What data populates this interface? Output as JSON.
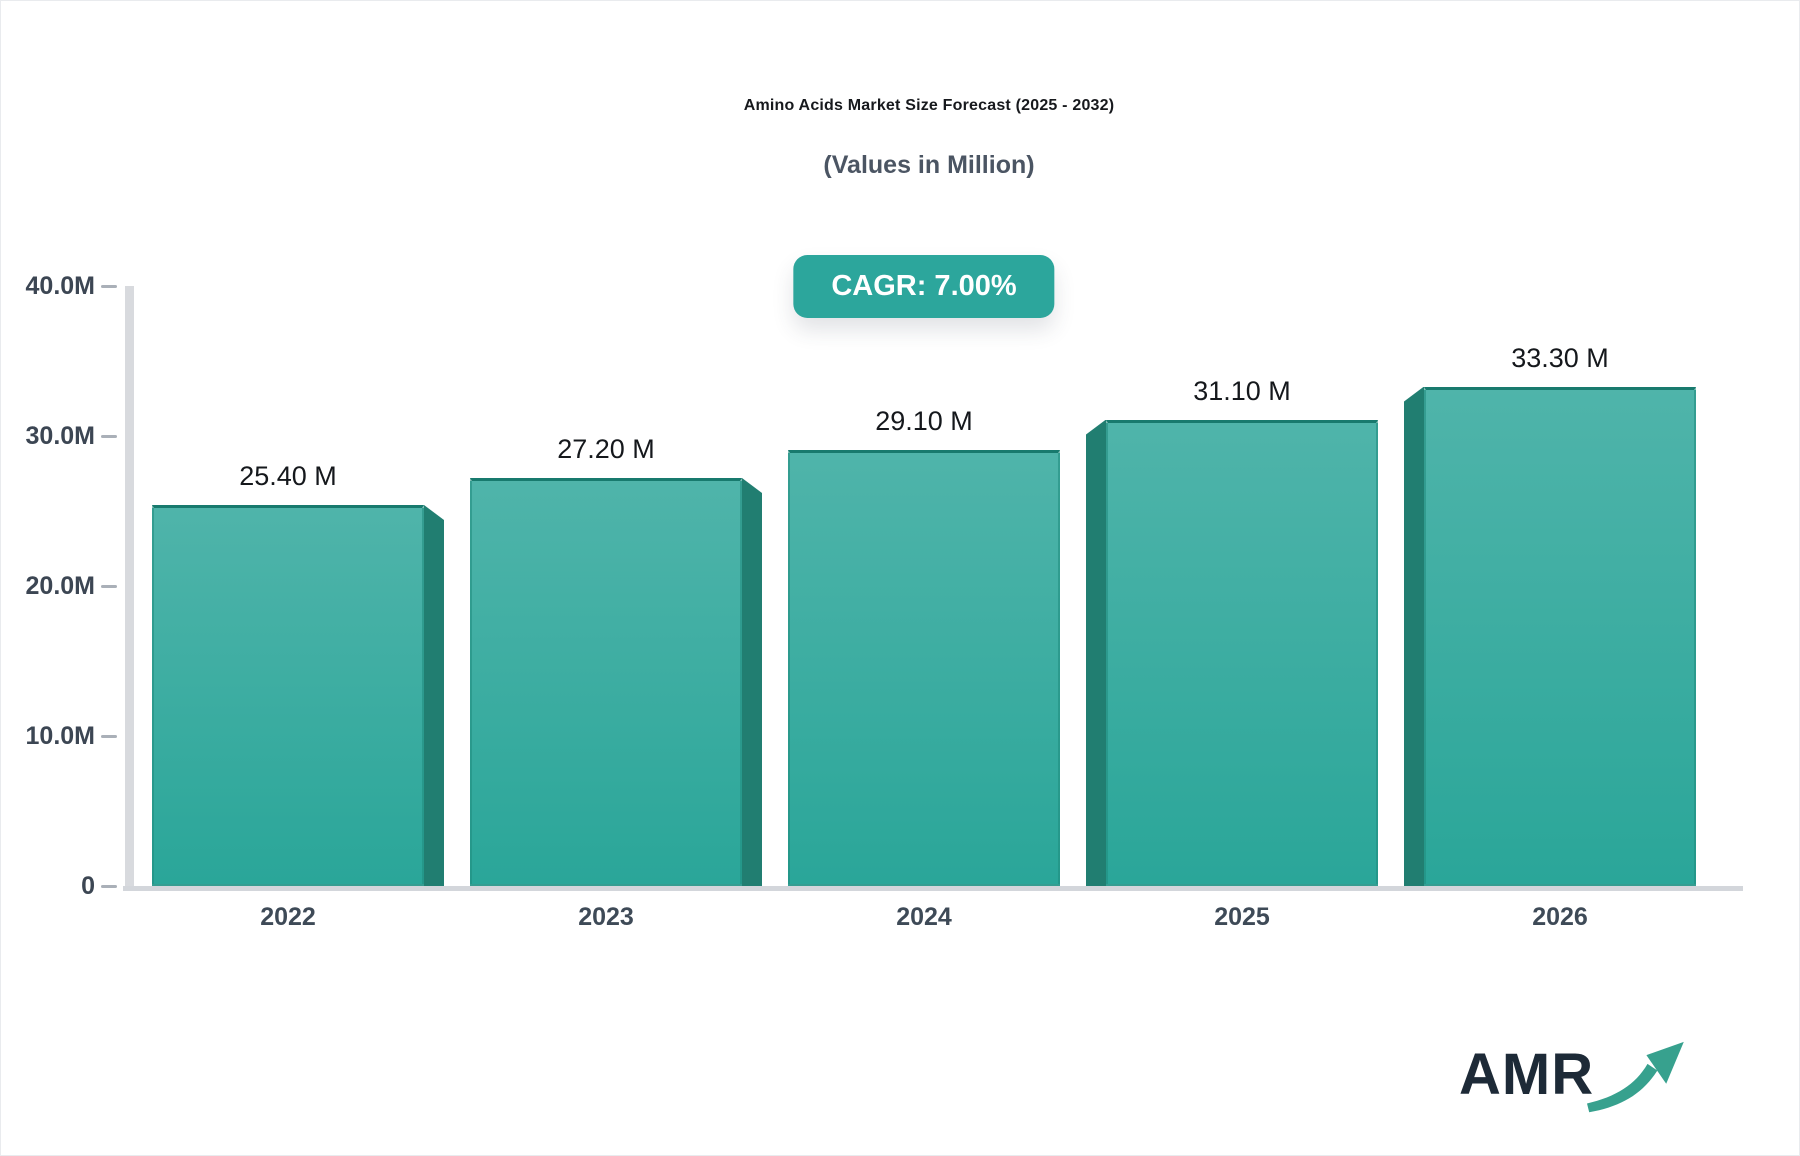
{
  "header": {
    "title": "Amino Acids Market Size Forecast (2025 - 2032)",
    "subtitle": "(Values in Million)",
    "cagr_badge": "CAGR: 7.00%"
  },
  "chart_data": {
    "type": "bar",
    "title": "Amino Acids Market Size Forecast (2025 - 2032)",
    "subtitle": "(Values in Million)",
    "categories": [
      "2022",
      "2023",
      "2024",
      "2025",
      "2026"
    ],
    "values": [
      25.4,
      27.2,
      29.1,
      31.1,
      33.3
    ],
    "value_labels": [
      "25.40 M",
      "27.20 M",
      "29.10 M",
      "31.10 M",
      "33.30 M"
    ],
    "annotation": "CAGR: 7.00%",
    "xlabel": "",
    "ylabel": "",
    "ylim": [
      0,
      40
    ],
    "ytick_values": [
      0,
      10,
      20,
      30,
      40
    ],
    "ytick_labels": [
      "0",
      "10.0M",
      "20.0M",
      "30.0M",
      "40.0M"
    ],
    "grid": false,
    "legend": "none",
    "bar_3d_sides": [
      "right",
      "right",
      "none",
      "left",
      "left"
    ],
    "colors": {
      "bar_top": "#4fb4aa",
      "bar_bottom": "#2aa699",
      "bar_side_panel": "#217e71",
      "bar_top_edge": "#187a6e",
      "badge_bg": "#2ca69c",
      "badge_text": "#ffffff",
      "axis_line": "#d8dade",
      "tick_text": "#3c4653",
      "value_label_text": "#15181c",
      "title_text": "#17191d",
      "logo_text": "#1d2a37",
      "logo_arrow": "#37a18e"
    }
  },
  "logo": {
    "text": "AMR"
  }
}
